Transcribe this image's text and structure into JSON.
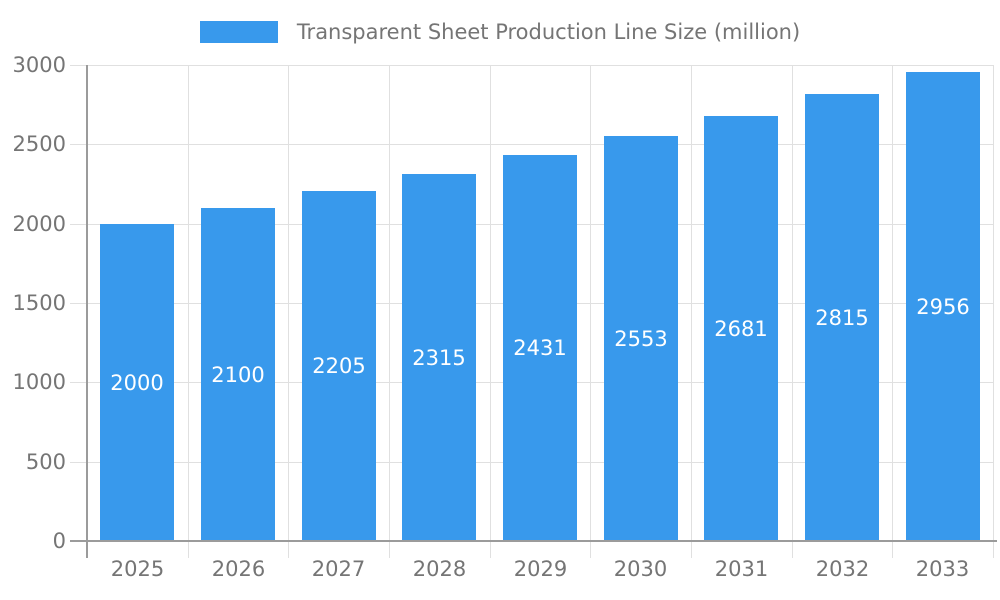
{
  "chart_data": {
    "type": "bar",
    "title": "Transparent Sheet Production Line Size (million)",
    "categories": [
      "2025",
      "2026",
      "2027",
      "2028",
      "2029",
      "2030",
      "2031",
      "2032",
      "2033"
    ],
    "values": [
      2000,
      2100,
      2205,
      2315,
      2431,
      2553,
      2681,
      2815,
      2956
    ],
    "xlabel": "",
    "ylabel": "",
    "ylim": [
      0,
      3000
    ],
    "yticks": [
      0,
      500,
      1000,
      1500,
      2000,
      2500,
      3000
    ],
    "grid": true,
    "legend_position": "top",
    "bar_label_position": "center",
    "colors": {
      "bar": "#3899EC",
      "bar_label": "#FFFFFF",
      "axis_text": "#757575",
      "grid": "#E0E0E0",
      "axis_line": "#9B9B9B",
      "background": "#FFFFFF"
    }
  }
}
